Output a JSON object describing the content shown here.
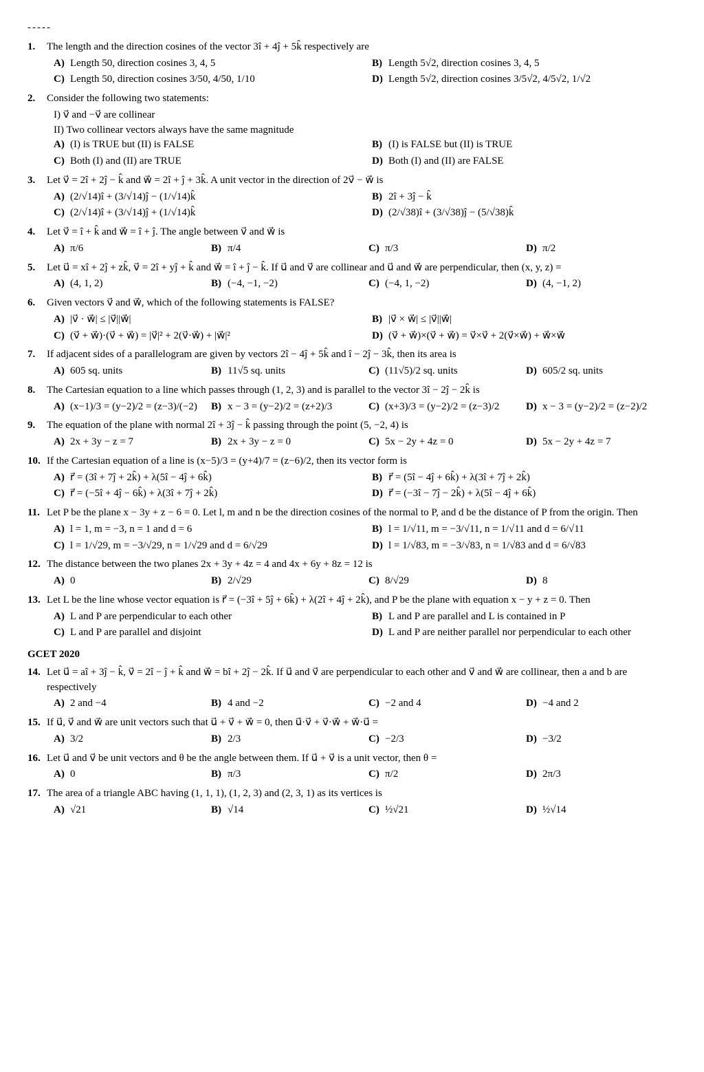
{
  "header_dashes": "-----",
  "questions": [
    {
      "num": "1.",
      "stem": "The length and the direction cosines of the vector 3î + 4ĵ + 5k̂ respectively are",
      "layout": "2col",
      "opts": [
        {
          "l": "A)",
          "t": "Length 50, direction cosines 3, 4, 5"
        },
        {
          "l": "B)",
          "t": "Length 5√2, direction cosines 3, 4, 5"
        },
        {
          "l": "C)",
          "t": "Length 50, direction cosines 3/50, 4/50, 1/10"
        },
        {
          "l": "D)",
          "t": "Length 5√2, direction cosines 3/5√2, 4/5√2, 1/√2"
        }
      ]
    },
    {
      "num": "2.",
      "stem": "Consider the following two statements:",
      "substems": [
        "I)    v⃗ and −v⃗ are collinear",
        "II)   Two collinear vectors always have the same magnitude"
      ],
      "layout": "2col",
      "opts": [
        {
          "l": "A)",
          "t": "(I) is TRUE but (II) is FALSE"
        },
        {
          "l": "B)",
          "t": "(I) is FALSE but (II) is TRUE"
        },
        {
          "l": "C)",
          "t": "Both (I) and (II) are TRUE"
        },
        {
          "l": "D)",
          "t": "Both (I) and (II) are FALSE"
        }
      ]
    },
    {
      "num": "3.",
      "stem": "Let v⃗ = 2î + 2ĵ − k̂ and w⃗ = 2î + ĵ + 3k̂. A unit vector in the direction of 2v⃗ − w⃗ is",
      "layout": "2col",
      "opts": [
        {
          "l": "A)",
          "t": "(2/√14)î + (3/√14)ĵ − (1/√14)k̂"
        },
        {
          "l": "B)",
          "t": "2î + 3ĵ − k̂"
        },
        {
          "l": "C)",
          "t": "(2/√14)î + (3/√14)ĵ + (1/√14)k̂"
        },
        {
          "l": "D)",
          "t": "(2/√38)î + (3/√38)ĵ − (5/√38)k̂"
        }
      ]
    },
    {
      "num": "4.",
      "stem": "Let v⃗ = î + k̂ and w⃗ = î + ĵ. The angle between v⃗ and w⃗ is",
      "layout": "4col",
      "opts": [
        {
          "l": "A)",
          "t": "π/6"
        },
        {
          "l": "B)",
          "t": "π/4"
        },
        {
          "l": "C)",
          "t": "π/3"
        },
        {
          "l": "D)",
          "t": "π/2"
        }
      ]
    },
    {
      "num": "5.",
      "stem": "Let u⃗ = xî + 2ĵ + zk̂, v⃗ = 2î + yĵ + k̂ and w⃗ = î + ĵ − k̂. If u⃗ and v⃗ are collinear and u⃗ and w⃗ are perpendicular, then (x, y, z) =",
      "layout": "4col",
      "opts": [
        {
          "l": "A)",
          "t": "(4, 1, 2)"
        },
        {
          "l": "B)",
          "t": "(−4, −1, −2)"
        },
        {
          "l": "C)",
          "t": "(−4, 1, −2)"
        },
        {
          "l": "D)",
          "t": "(4, −1, 2)"
        }
      ]
    },
    {
      "num": "6.",
      "stem": "Given vectors v⃗ and w⃗, which of the following statements is FALSE?",
      "layout": "2col",
      "opts": [
        {
          "l": "A)",
          "t": "|v⃗ · w⃗| ≤ |v⃗||w⃗|"
        },
        {
          "l": "B)",
          "t": "|v⃗ × w⃗| ≤ |v⃗||w⃗|"
        },
        {
          "l": "C)",
          "t": "(v⃗ + w⃗)·(v⃗ + w⃗) = |v⃗|² + 2(v⃗·w⃗) + |w⃗|²"
        },
        {
          "l": "D)",
          "t": "(v⃗ + w⃗)×(v⃗ + w⃗) = v⃗×v⃗ + 2(v⃗×w⃗) + w⃗×w⃗"
        }
      ]
    },
    {
      "num": "7.",
      "stem": "If adjacent sides of a parallelogram are given by vectors 2î − 4ĵ + 5k̂ and î − 2ĵ − 3k̂, then its area is",
      "layout": "4col",
      "opts": [
        {
          "l": "A)",
          "t": "605 sq. units"
        },
        {
          "l": "B)",
          "t": "11√5 sq. units"
        },
        {
          "l": "C)",
          "t": "(11√5)/2 sq. units"
        },
        {
          "l": "D)",
          "t": "605/2 sq. units"
        }
      ]
    },
    {
      "num": "8.",
      "stem": "The Cartesian equation to a line which passes through (1, 2, 3) and is parallel to the vector 3î − 2ĵ − 2k̂ is",
      "layout": "4col",
      "opts": [
        {
          "l": "A)",
          "t": "(x−1)/3 = (y−2)/2 = (z−3)/(−2)"
        },
        {
          "l": "B)",
          "t": "x − 3 = (y−2)/2 = (z+2)/3"
        },
        {
          "l": "C)",
          "t": "(x+3)/3 = (y−2)/2 = (z−3)/2"
        },
        {
          "l": "D)",
          "t": "x − 3 = (y−2)/2 = (z−2)/2"
        }
      ]
    },
    {
      "num": "9.",
      "stem": "The equation of the plane with normal 2î + 3ĵ − k̂ passing through the point (5, −2, 4) is",
      "layout": "4col",
      "opts": [
        {
          "l": "A)",
          "t": "2x + 3y − z = 7"
        },
        {
          "l": "B)",
          "t": "2x + 3y − z = 0"
        },
        {
          "l": "C)",
          "t": "5x − 2y + 4z = 0"
        },
        {
          "l": "D)",
          "t": "5x − 2y + 4z = 7"
        }
      ]
    },
    {
      "num": "10.",
      "stem": "If the Cartesian equation of a line is (x−5)/3 = (y+4)/7 = (z−6)/2, then its vector form is",
      "layout": "2col",
      "opts": [
        {
          "l": "A)",
          "t": "r⃗ = (3î + 7ĵ + 2k̂) + λ(5î − 4ĵ + 6k̂)"
        },
        {
          "l": "B)",
          "t": "r⃗ = (5î − 4ĵ + 6k̂) + λ(3î + 7ĵ + 2k̂)"
        },
        {
          "l": "C)",
          "t": "r⃗ = (−5î + 4ĵ − 6k̂) + λ(3î + 7ĵ + 2k̂)"
        },
        {
          "l": "D)",
          "t": "r⃗ = (−3î − 7ĵ − 2k̂) + λ(5î − 4ĵ + 6k̂)"
        }
      ]
    },
    {
      "num": "11.",
      "stem": "Let P be the plane x − 3y + z − 6 = 0. Let l, m and n be the direction cosines of the normal to P, and d be the distance of P from the origin. Then",
      "layout": "2col",
      "opts": [
        {
          "l": "A)",
          "t": "l = 1, m = −3, n = 1 and d = 6"
        },
        {
          "l": "B)",
          "t": "l = 1/√11, m = −3/√11, n = 1/√11 and d = 6/√11"
        },
        {
          "l": "C)",
          "t": "l = 1/√29, m = −3/√29, n = 1/√29 and d = 6/√29"
        },
        {
          "l": "D)",
          "t": "l = 1/√83, m = −3/√83, n = 1/√83 and d = 6/√83"
        }
      ]
    },
    {
      "num": "12.",
      "stem": "The distance between the two planes 2x + 3y + 4z = 4 and 4x + 6y + 8z = 12 is",
      "layout": "4col",
      "opts": [
        {
          "l": "A)",
          "t": "0"
        },
        {
          "l": "B)",
          "t": "2/√29"
        },
        {
          "l": "C)",
          "t": "8/√29"
        },
        {
          "l": "D)",
          "t": "8"
        }
      ]
    },
    {
      "num": "13.",
      "stem": "Let L be the line whose vector equation is r⃗ = (−3î + 5ĵ + 6k̂) + λ(2î + 4ĵ + 2k̂), and P be the plane with equation x − y + z = 0. Then",
      "layout": "2col",
      "opts": [
        {
          "l": "A)",
          "t": "L and P are perpendicular to each other"
        },
        {
          "l": "B)",
          "t": "L and P are parallel and L is contained in P"
        },
        {
          "l": "C)",
          "t": "L and P are parallel and disjoint"
        },
        {
          "l": "D)",
          "t": "L and P are neither parallel nor perpendicular to each other"
        }
      ]
    }
  ],
  "section_header": "GCET 2020",
  "questions2": [
    {
      "num": "14.",
      "stem": "Let u⃗ = aî + 3ĵ − k̂, v⃗ = 2î − ĵ + k̂ and w⃗ = bî + 2ĵ − 2k̂. If u⃗ and v⃗ are perpendicular to each other and v⃗ and w⃗ are collinear, then a and b are respectively",
      "layout": "4col",
      "opts": [
        {
          "l": "A)",
          "t": "2 and −4"
        },
        {
          "l": "B)",
          "t": "4 and −2"
        },
        {
          "l": "C)",
          "t": "−2 and 4"
        },
        {
          "l": "D)",
          "t": "−4 and 2"
        }
      ]
    },
    {
      "num": "15.",
      "stem": "If u⃗, v⃗ and w⃗ are unit vectors such that u⃗ + v⃗ + w⃗ = 0, then u⃗·v⃗ + v⃗·w⃗ + w⃗·u⃗ =",
      "layout": "4col",
      "opts": [
        {
          "l": "A)",
          "t": "3/2"
        },
        {
          "l": "B)",
          "t": "2/3"
        },
        {
          "l": "C)",
          "t": "−2/3"
        },
        {
          "l": "D)",
          "t": "−3/2"
        }
      ]
    },
    {
      "num": "16.",
      "stem": "Let u⃗ and v⃗ be unit vectors and θ be the angle between them. If u⃗ + v⃗ is a unit vector, then θ =",
      "layout": "4col",
      "opts": [
        {
          "l": "A)",
          "t": "0"
        },
        {
          "l": "B)",
          "t": "π/3"
        },
        {
          "l": "C)",
          "t": "π/2"
        },
        {
          "l": "D)",
          "t": "2π/3"
        }
      ]
    },
    {
      "num": "17.",
      "stem": "The area of a triangle ABC having (1, 1, 1), (1, 2, 3) and (2, 3, 1) as its vertices is",
      "layout": "4col",
      "opts": [
        {
          "l": "A)",
          "t": "√21"
        },
        {
          "l": "B)",
          "t": "√14"
        },
        {
          "l": "C)",
          "t": "½√21"
        },
        {
          "l": "D)",
          "t": "½√14"
        }
      ]
    }
  ]
}
